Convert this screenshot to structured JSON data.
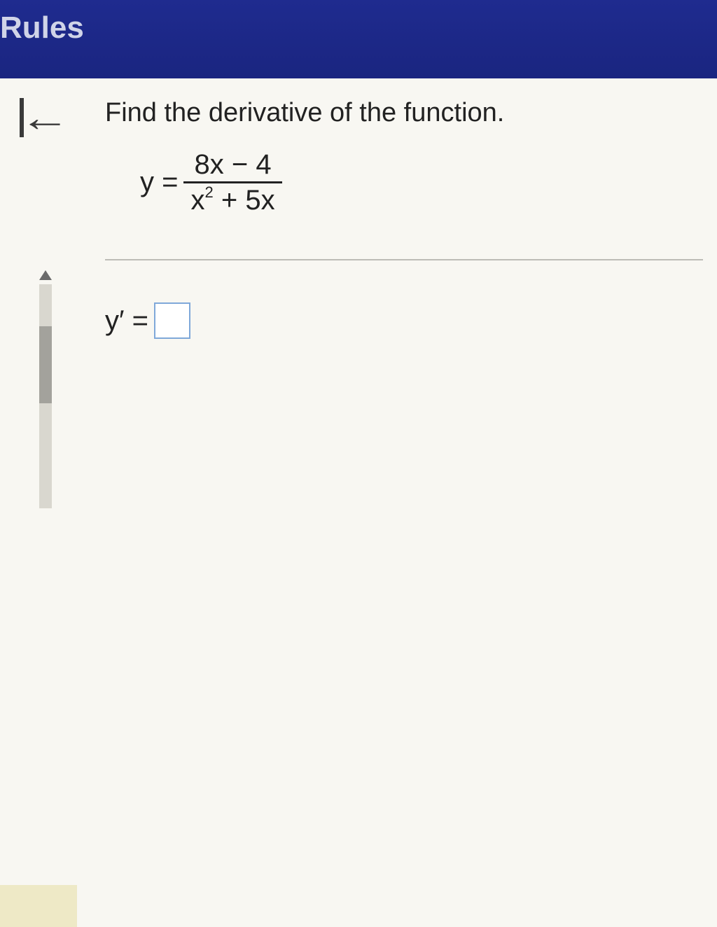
{
  "header": {
    "title": "Rules",
    "background_color": "#1a2580",
    "text_color": "#d0d4e8",
    "font_size_pt": 34
  },
  "question": {
    "prompt": "Find the derivative of the function.",
    "equation": {
      "lhs": "y =",
      "numerator": "8x − 4",
      "denominator_pre": "x",
      "denominator_exp": "2",
      "denominator_post": " + 5x"
    }
  },
  "answer": {
    "lhs": "y′ =",
    "input_value": ""
  },
  "styling": {
    "content_background": "#f8f7f2",
    "text_color": "#222222",
    "divider_color": "#bdbcb6",
    "input_border_color": "#7fa8d9",
    "scrollbar_track": "#d9d7cf",
    "scrollbar_thumb": "#a3a29c",
    "prompt_fontsize_pt": 28,
    "equation_fontsize_pt": 30
  }
}
